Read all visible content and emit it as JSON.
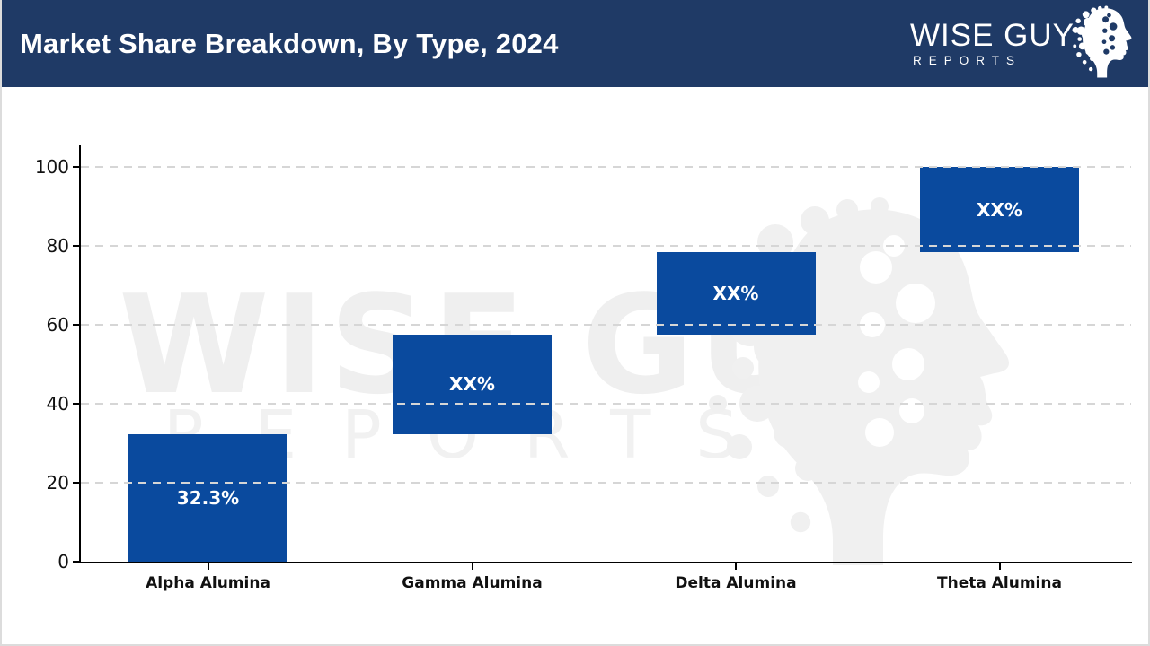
{
  "header": {
    "title": "Market Share Breakdown, By Type, 2024",
    "logo": {
      "line1": "WISE GUY",
      "line2": "REPORTS"
    }
  },
  "watermark": {
    "line1": "WISE GUY",
    "line2": "REPORTS"
  },
  "colors": {
    "header_bg": "#1F3A66",
    "bar": "#0A4A9E",
    "grid": "#D6D6D6",
    "watermark": "#EFEFEF",
    "bar_label": "#FFFFFF",
    "axis": "#000000"
  },
  "chart_data": {
    "type": "bar",
    "subtype": "floating-waterfall",
    "title": "Market Share Breakdown, By Type, 2024",
    "categories": [
      "Alpha Alumina",
      "Gamma Alumina",
      "Delta Alumina",
      "Theta Alumina"
    ],
    "segments": [
      {
        "category": "Alpha Alumina",
        "start": 0,
        "end": 32.3,
        "label": "32.3%"
      },
      {
        "category": "Gamma Alumina",
        "start": 32.3,
        "end": 57.6,
        "label": "XX%"
      },
      {
        "category": "Delta Alumina",
        "start": 57.6,
        "end": 78.4,
        "label": "XX%"
      },
      {
        "category": "Theta Alumina",
        "start": 78.4,
        "end": 100,
        "label": "XX%"
      }
    ],
    "yticks": [
      0,
      20,
      40,
      60,
      80,
      100
    ],
    "ylim": [
      0,
      105
    ],
    "xlabel": "",
    "ylabel": "",
    "grid": "dashed-horizontal",
    "legend": "none"
  }
}
